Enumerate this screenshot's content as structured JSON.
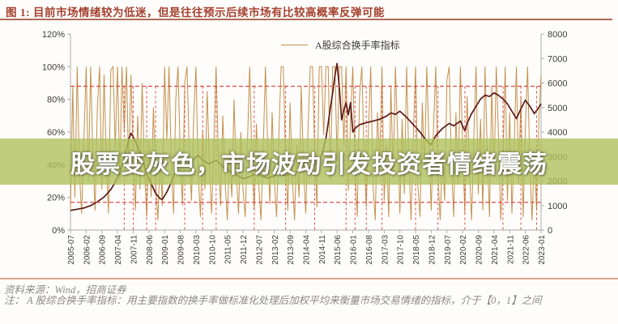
{
  "figure": {
    "title": "图 1: 目前市场情绪较为低迷，但是往往预示后续市场有比较高概率反弹可能"
  },
  "legend": {
    "label": "A股综合换手率指标"
  },
  "overlay": {
    "text": "股票变灰色，市场波动引发投资者情绪震荡"
  },
  "footer": {
    "source": "资料来源：Wind，招商证券",
    "note": "注：  A 股综合换手率指标：用主要指数的换手率做标准化处理后加权平均来衡量市场交易情绪的指标，介于【0，1】之间"
  },
  "colors": {
    "title": "#A5402E",
    "title_rule": "#B06A55",
    "turnover_line": "#C3904C",
    "index_line": "#5C1A18",
    "dashed": "#E04B43",
    "band": "rgba(175,192,92,0.80)",
    "axis_line": "#ABABAB",
    "axis_text": "#3d3d3d",
    "note_text": "#8a8a8a",
    "foot_rule": "#DCA48D"
  },
  "chart_data": {
    "type": "line",
    "title": "目前市场情绪较为低迷，但是往往预示后续市场有比较高概率反弹可能",
    "legend_position": "top-center",
    "grid": false,
    "x_axis": {
      "unit": "year-month",
      "tick_labels": [
        "2005-07",
        "2006-02",
        "2006-09",
        "2007-04",
        "2007-11",
        "2008-06",
        "2009-01",
        "2009-08",
        "2010-03",
        "2010-10",
        "2011-05",
        "2011-12",
        "2012-07",
        "2013-02",
        "2013-09",
        "2014-04",
        "2014-11",
        "2015-06",
        "2016-01",
        "2016-08",
        "2017-03",
        "2017-10",
        "2018-05",
        "2018-12",
        "2019-07",
        "2020-02",
        "2020-09",
        "2021-04",
        "2021-11",
        "2022-06",
        "2023-01"
      ],
      "range_months": [
        0,
        210
      ]
    },
    "y_left": {
      "tick_labels": [
        "0%",
        "20%",
        "40%",
        "60%",
        "80%",
        "100%",
        "120%"
      ],
      "min": 0,
      "max": 120
    },
    "y_right": {
      "tick_labels": [
        "0",
        "1000",
        "2000",
        "3000",
        "4000",
        "5000",
        "6000",
        "7000",
        "8000"
      ],
      "min": 0,
      "max": 8000
    },
    "thresholds": {
      "upper_pct": 88,
      "lower_pct": 17
    },
    "event_lines_months": [
      24,
      28,
      34,
      38,
      51,
      59,
      65,
      82,
      96,
      109,
      123,
      127,
      132,
      139,
      154,
      164,
      176,
      193,
      201,
      208
    ],
    "series": [
      {
        "name": "A股综合换手率指标",
        "axis": "left",
        "x_step_months": 1,
        "values": [
          12,
          88,
          20,
          100,
          35,
          10,
          55,
          100,
          30,
          100,
          45,
          12,
          75,
          100,
          25,
          95,
          40,
          10,
          98,
          100,
          50,
          100,
          30,
          100,
          60,
          100,
          35,
          95,
          45,
          12,
          70,
          25,
          90,
          40,
          8,
          55,
          20,
          75,
          30,
          6,
          45,
          15,
          100,
          55,
          100,
          40,
          10,
          80,
          100,
          45,
          15,
          90,
          100,
          50,
          18,
          70,
          100,
          35,
          8,
          60,
          25,
          85,
          40,
          10,
          55,
          100,
          45,
          15,
          70,
          30,
          6,
          50,
          20,
          80,
          35,
          10,
          60,
          25,
          8,
          55,
          100,
          40,
          12,
          65,
          28,
          6,
          48,
          100,
          52,
          16,
          72,
          30,
          8,
          58,
          100,
          100,
          42,
          12,
          78,
          32,
          6,
          52,
          20,
          88,
          38,
          10,
          62,
          100,
          100,
          48,
          14,
          100,
          100,
          58,
          100,
          100,
          30,
          100,
          100,
          42,
          100,
          100,
          52,
          100,
          24,
          68,
          100,
          38,
          8,
          82,
          100,
          48,
          14,
          62,
          100,
          28,
          6,
          72,
          42,
          100,
          18,
          52,
          8,
          88,
          32,
          100,
          58,
          10,
          68,
          22,
          100,
          42,
          6,
          58,
          100,
          28,
          8,
          78,
          38,
          100,
          52,
          12,
          62,
          100,
          32,
          6,
          48,
          18,
          92,
          100,
          42,
          8,
          72,
          28,
          100,
          52,
          10,
          82,
          38,
          6,
          58,
          100,
          22,
          68,
          12,
          100,
          48,
          8,
          88,
          32,
          100,
          58,
          6,
          42,
          100,
          18,
          72,
          10,
          52,
          100,
          28,
          82,
          8,
          62,
          100,
          38,
          6,
          48,
          12,
          66,
          95
        ]
      },
      {
        "name": "unlabeled-index-line-right-axis",
        "axis": "right",
        "points": [
          [
            0,
            800
          ],
          [
            3,
            850
          ],
          [
            6,
            900
          ],
          [
            9,
            1000
          ],
          [
            12,
            1150
          ],
          [
            15,
            1350
          ],
          [
            18,
            1650
          ],
          [
            20,
            1950
          ],
          [
            22,
            2350
          ],
          [
            24,
            2900
          ],
          [
            25,
            3300
          ],
          [
            26,
            3700
          ],
          [
            27,
            3950
          ],
          [
            28,
            3800
          ],
          [
            30,
            3400
          ],
          [
            32,
            2900
          ],
          [
            34,
            2300
          ],
          [
            36,
            1900
          ],
          [
            38,
            1500
          ],
          [
            40,
            1280
          ],
          [
            41,
            1250
          ],
          [
            43,
            1550
          ],
          [
            45,
            1950
          ],
          [
            47,
            2450
          ],
          [
            49,
            2850
          ],
          [
            51,
            2950
          ],
          [
            53,
            2700
          ],
          [
            55,
            2900
          ],
          [
            57,
            3050
          ],
          [
            59,
            2850
          ],
          [
            62,
            2700
          ],
          [
            65,
            2850
          ],
          [
            68,
            2600
          ],
          [
            71,
            2400
          ],
          [
            74,
            2250
          ],
          [
            77,
            2100
          ],
          [
            80,
            2180
          ],
          [
            83,
            2320
          ],
          [
            85,
            2220
          ],
          [
            88,
            2120
          ],
          [
            90,
            2180
          ],
          [
            93,
            2280
          ],
          [
            96,
            2220
          ],
          [
            99,
            2320
          ],
          [
            102,
            2380
          ],
          [
            105,
            2480
          ],
          [
            108,
            2580
          ],
          [
            110,
            2750
          ],
          [
            112,
            3050
          ],
          [
            113,
            3350
          ],
          [
            114,
            3750
          ],
          [
            115,
            4350
          ],
          [
            116,
            5000
          ],
          [
            117,
            5600
          ],
          [
            118,
            6300
          ],
          [
            119,
            6800
          ],
          [
            120,
            5800
          ],
          [
            121,
            4500
          ],
          [
            122,
            4900
          ],
          [
            123,
            5200
          ],
          [
            124,
            4700
          ],
          [
            125,
            5200
          ],
          [
            126,
            4000
          ],
          [
            127,
            4150
          ],
          [
            129,
            4300
          ],
          [
            132,
            4380
          ],
          [
            135,
            4450
          ],
          [
            138,
            4520
          ],
          [
            141,
            4650
          ],
          [
            143,
            4780
          ],
          [
            145,
            4720
          ],
          [
            147,
            4850
          ],
          [
            150,
            4600
          ],
          [
            153,
            4300
          ],
          [
            156,
            4000
          ],
          [
            158,
            3750
          ],
          [
            160,
            3550
          ],
          [
            161,
            3480
          ],
          [
            163,
            3850
          ],
          [
            166,
            4150
          ],
          [
            169,
            4350
          ],
          [
            171,
            4250
          ],
          [
            174,
            4450
          ],
          [
            176,
            4050
          ],
          [
            177,
            4350
          ],
          [
            179,
            4750
          ],
          [
            181,
            5050
          ],
          [
            183,
            5350
          ],
          [
            185,
            5500
          ],
          [
            187,
            5450
          ],
          [
            189,
            5600
          ],
          [
            191,
            5500
          ],
          [
            193,
            5350
          ],
          [
            195,
            5150
          ],
          [
            197,
            4850
          ],
          [
            199,
            4550
          ],
          [
            201,
            4950
          ],
          [
            203,
            5300
          ],
          [
            205,
            5050
          ],
          [
            207,
            4750
          ],
          [
            209,
            5000
          ],
          [
            210,
            5150
          ]
        ]
      }
    ]
  }
}
